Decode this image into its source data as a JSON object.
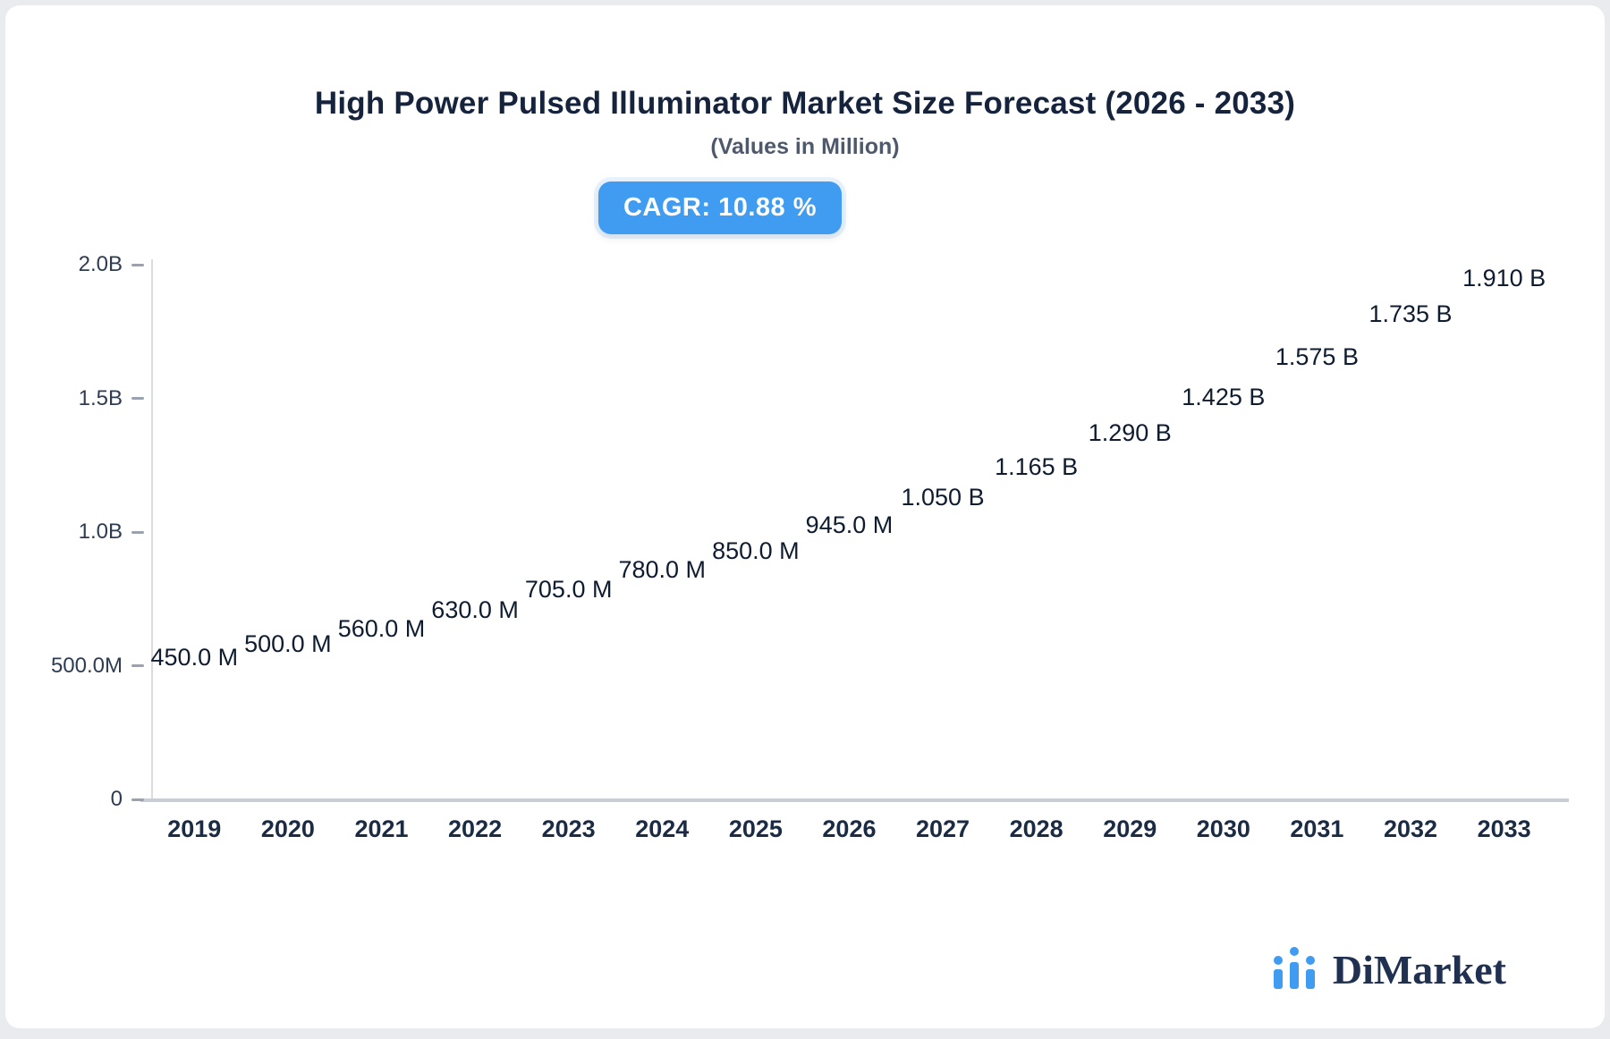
{
  "title": "High Power Pulsed Illuminator Market Size Forecast (2026 - 2033)",
  "subtitle": "(Values in Million)",
  "cagr_label": "CAGR: 10.88 %",
  "brand": {
    "name": "DiMarket",
    "logo_icon": "mini-bar-chart-icon",
    "text_color": "#1f3050",
    "icon_color": "#3f9cf0"
  },
  "chart_data": {
    "type": "bar",
    "title": "High Power Pulsed Illuminator Market Size Forecast (2026 - 2033)",
    "subtitle": "(Values in Million)",
    "xlabel": "",
    "ylabel": "",
    "units": "Million USD",
    "ylim": [
      0,
      2000
    ],
    "grid": false,
    "legend": false,
    "categories": [
      "2019",
      "2020",
      "2021",
      "2022",
      "2023",
      "2024",
      "2025",
      "2026",
      "2027",
      "2028",
      "2029",
      "2030",
      "2031",
      "2032",
      "2033"
    ],
    "values": [
      450,
      500,
      560,
      630,
      705,
      780,
      850,
      945,
      1050,
      1165,
      1290,
      1425,
      1575,
      1735,
      1910
    ],
    "value_labels": [
      "450.0 M",
      "500.0 M",
      "560.0 M",
      "630.0 M",
      "705.0 M",
      "780.0 M",
      "850.0 M",
      "945.0 M",
      "1.050 B",
      "1.165 B",
      "1.290 B",
      "1.425 B",
      "1.575 B",
      "1.735 B",
      "1.910 B"
    ],
    "y_ticks": [
      {
        "label": "2.0B",
        "value": 2000
      },
      {
        "label": "1.5B",
        "value": 1500
      },
      {
        "label": "1.0B",
        "value": 1000
      },
      {
        "label": "500.0M",
        "value": 500
      },
      {
        "label": "0",
        "value": 0
      }
    ],
    "bar_color_top": "#5fb2f4",
    "bar_color_bottom": "#2f86db",
    "bar_side_color": "#1f6db8",
    "axis_color": "#c9cdd4"
  }
}
